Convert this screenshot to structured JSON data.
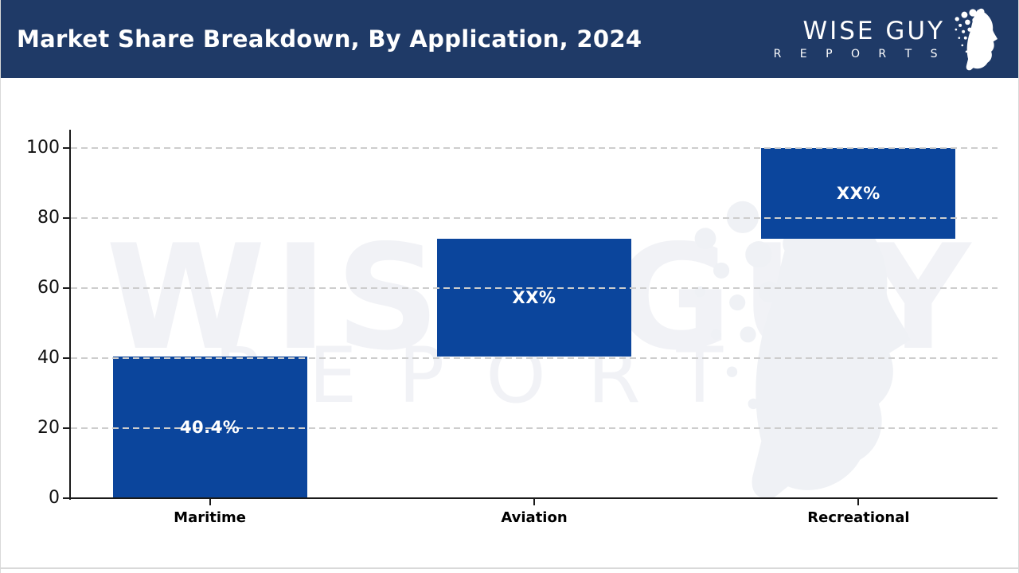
{
  "header": {
    "title": "Market Share Breakdown, By Application, 2024",
    "logo": {
      "line1": "WISE GUY",
      "line2": "R E P O R T S"
    }
  },
  "watermark": {
    "line1": "WISE GUY",
    "line2": "REPORTS"
  },
  "colors": {
    "header_bg": "#1f3a67",
    "bar_blue": "#0b459c",
    "grid_gray": "#cdcdcd",
    "axis_black": "#1a1a1a",
    "watermark_gray": "#f1f2f6",
    "frame_gray": "#d9d9d9"
  },
  "chart_data": {
    "type": "bar",
    "subtype": "floating-waterfall",
    "title": "Market Share Breakdown, By Application, 2024",
    "categories": [
      "Maritime",
      "Aviation",
      "Recreational"
    ],
    "bars": [
      {
        "category": "Maritime",
        "start": 0,
        "end": 40.4,
        "label": "40.4%"
      },
      {
        "category": "Aviation",
        "start": 40.4,
        "end": 74,
        "label": "XX%"
      },
      {
        "category": "Recreational",
        "start": 74,
        "end": 100,
        "label": "XX%"
      }
    ],
    "yticks": [
      0,
      20,
      40,
      60,
      80,
      100
    ],
    "ylim": [
      0,
      105
    ],
    "xlabel": "",
    "ylabel": "",
    "grid": "horizontal-dashed-over-bars",
    "legend": "none",
    "bar_color": "#0b459c",
    "bar_label_color": "#ffffff"
  }
}
